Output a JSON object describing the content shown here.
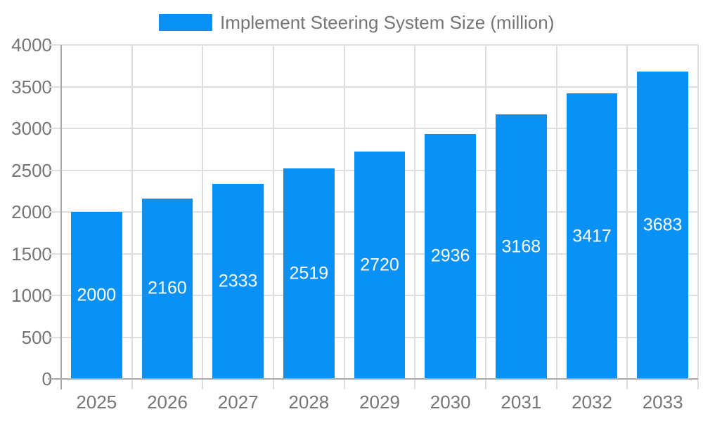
{
  "legend": {
    "label": "Implement Steering System Size (million)"
  },
  "colors": {
    "bar": "#0a91f5",
    "axis_text": "#757575",
    "bar_label_text": "#ffffff",
    "gridline": "#dedede",
    "axis_line": "#a9a9a9",
    "background": "#ffffff"
  },
  "chart_data": {
    "type": "bar",
    "title": "",
    "legend_entries": [
      "Implement Steering System Size (million)"
    ],
    "legend_position": "top",
    "categories": [
      "2025",
      "2026",
      "2027",
      "2028",
      "2029",
      "2030",
      "2031",
      "2032",
      "2033"
    ],
    "values": [
      2000,
      2160,
      2333,
      2519,
      2720,
      2936,
      3168,
      3417,
      3683
    ],
    "bar_value_labels": [
      "2000",
      "2160",
      "2333",
      "2519",
      "2720",
      "2936",
      "3168",
      "3417",
      "3683"
    ],
    "xlabel": "",
    "ylabel": "",
    "ylim": [
      0,
      4000
    ],
    "yticks": [
      0,
      500,
      1000,
      1500,
      2000,
      2500,
      3000,
      3500,
      4000
    ],
    "grid": true
  }
}
